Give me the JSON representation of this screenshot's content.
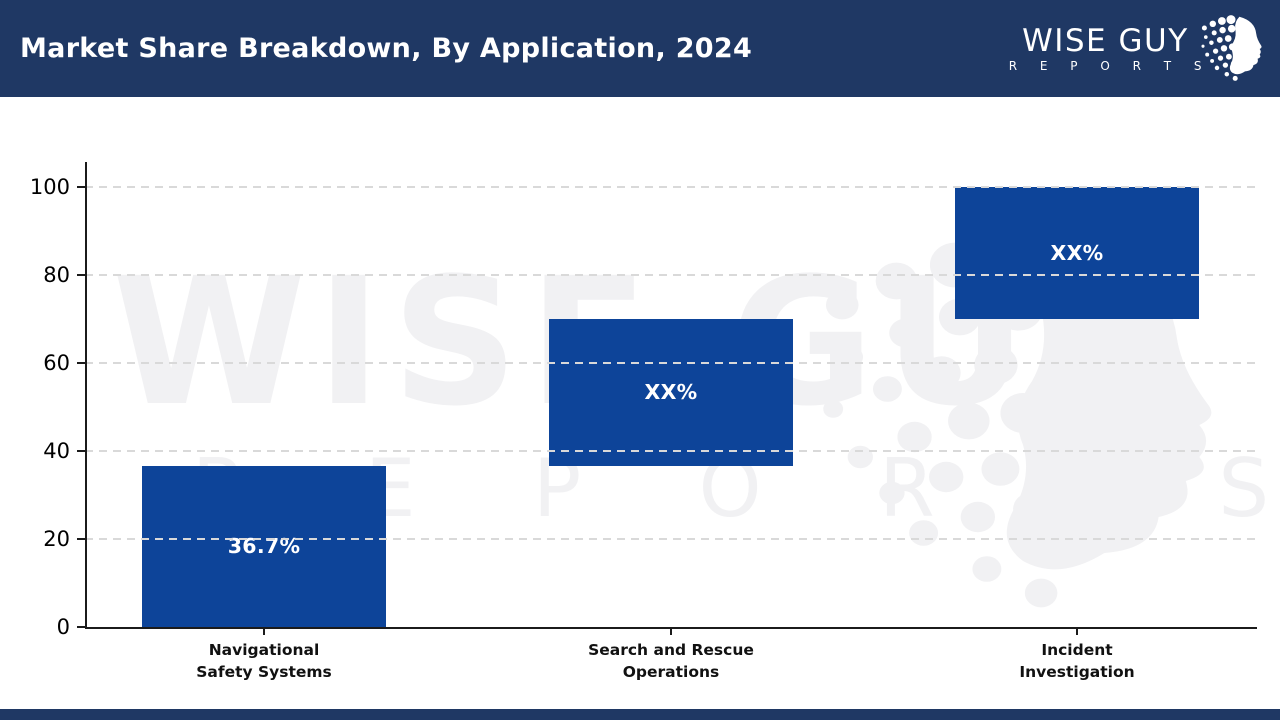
{
  "header": {
    "title": "Market Share Breakdown, By Application, 2024",
    "logo": {
      "line1": "WISE GUY",
      "line2": "R E P O R T S"
    }
  },
  "watermark": {
    "line1": "WISE GUY",
    "line2": "R E P O R T S"
  },
  "chart_data": {
    "type": "bar",
    "subtype": "waterfall",
    "title": "Market Share Breakdown, By Application, 2024",
    "categories": [
      "Navigational\nSafety Systems",
      "Search and Rescue\nOperations",
      "Incident\nInvestigation"
    ],
    "bars": [
      {
        "start": 0,
        "end": 36.7,
        "value": 36.7,
        "label": "36.7%"
      },
      {
        "start": 36.7,
        "end": 70,
        "value": 33.3,
        "label": "XX%"
      },
      {
        "start": 70,
        "end": 100,
        "value": 30,
        "label": "XX%"
      }
    ],
    "xlabel": "",
    "ylabel": "",
    "ylim": [
      0,
      100
    ],
    "yticks": [
      0,
      20,
      40,
      60,
      80,
      100
    ],
    "grid": "horizontal-dashed",
    "legend": "none"
  },
  "colors": {
    "header_bg": "#1f3864",
    "footer_bg": "#1f3864",
    "bar_fill": "#0d4499",
    "bar_label": "#ffffff",
    "gridline": "#d9d9d9",
    "axis": "#1b1b1b",
    "watermark": "#f1f1f3",
    "title_text": "#ffffff"
  }
}
